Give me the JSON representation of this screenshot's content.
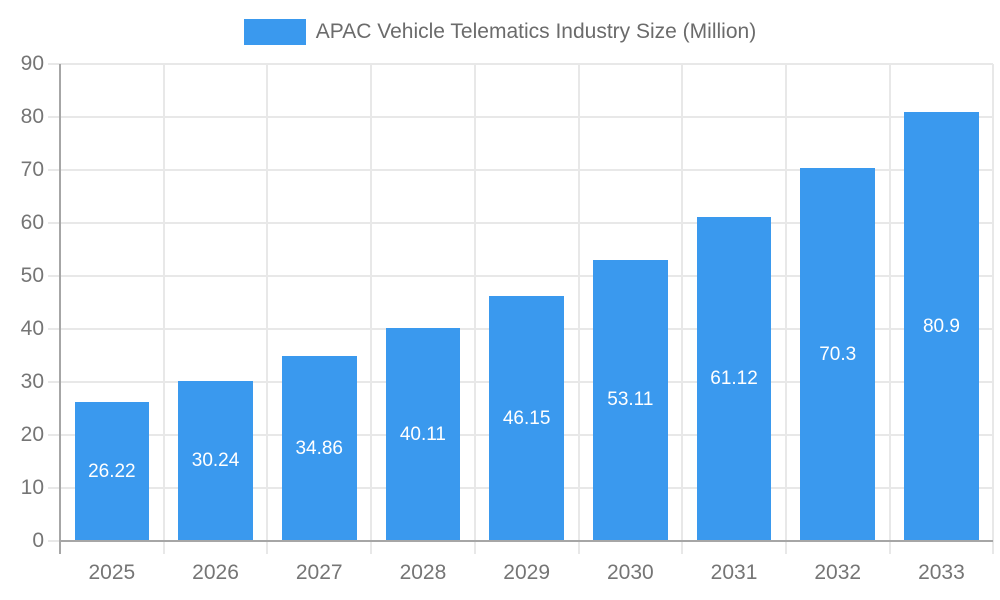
{
  "chart_data": {
    "type": "bar",
    "title": "APAC Vehicle Telematics Industry Size (Million)",
    "categories": [
      "2025",
      "2026",
      "2027",
      "2028",
      "2029",
      "2030",
      "2031",
      "2032",
      "2033"
    ],
    "values": [
      26.22,
      30.24,
      34.86,
      40.11,
      46.15,
      53.11,
      61.12,
      70.3,
      80.9
    ],
    "xlabel": "",
    "ylabel": "",
    "ylim": [
      0,
      90
    ],
    "y_ticks": [
      0,
      10,
      20,
      30,
      40,
      50,
      60,
      70,
      80,
      90
    ],
    "grid": true,
    "legend_position": "top-center",
    "value_labels_inside_bars": true,
    "colors": {
      "bar": "#3A99EE",
      "gridline": "#e8e8e8",
      "axis_line": "#a6a6a6",
      "axis_label": "#757575",
      "legend_text": "#6b6b6b",
      "value_label": "#ffffff",
      "background": "#ffffff"
    }
  }
}
